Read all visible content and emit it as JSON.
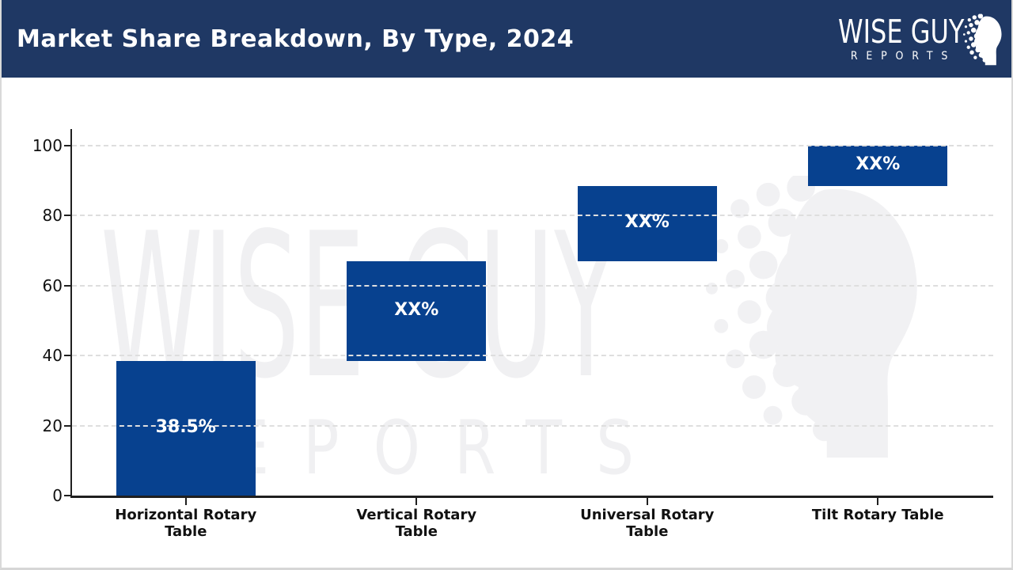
{
  "header": {
    "title": "Market Share Breakdown, By Type, 2024",
    "logo": {
      "brand_line1": "WISE GUY",
      "brand_line2": "REPORTS",
      "face_icon": "dotted-face-profile"
    }
  },
  "watermark": {
    "line1": "WISE GUY",
    "line2": "REPORTS",
    "face_icon": "dotted-face-profile"
  },
  "colors": {
    "header_bg": "#1f3864",
    "bar": "#07418f",
    "bar_label_text": "#ffffff",
    "grid": "#dedede",
    "axis": "#1f1f1f",
    "tick_text": "#111111",
    "watermark": "#f0f0f2"
  },
  "chart_data": {
    "type": "bar",
    "subtype": "waterfall-stacked",
    "title": "Market Share Breakdown, By Type, 2024",
    "categories": [
      "Horizontal Rotary Table",
      "Vertical Rotary Table",
      "Universal Rotary Table",
      "Tilt Rotary Table"
    ],
    "category_lines": [
      [
        "Horizontal Rotary",
        "Table"
      ],
      [
        "Vertical Rotary",
        "Table"
      ],
      [
        "Universal Rotary",
        "Table"
      ],
      [
        "Tilt Rotary Table"
      ]
    ],
    "segments": [
      {
        "category": "Horizontal Rotary Table",
        "start": 0,
        "end": 38.5,
        "label": "38.5%"
      },
      {
        "category": "Vertical Rotary Table",
        "start": 38.5,
        "end": 67,
        "label": "XX%"
      },
      {
        "category": "Universal Rotary Table",
        "start": 67,
        "end": 88.5,
        "label": "XX%"
      },
      {
        "category": "Tilt Rotary Table",
        "start": 88.5,
        "end": 100,
        "label": "XX%"
      }
    ],
    "ylim": [
      0,
      100
    ],
    "yticks": [
      0,
      20,
      40,
      60,
      80,
      100
    ],
    "xlabel": "",
    "ylabel": "",
    "grid": "horizontal-dashed-over-bars",
    "legend": "none"
  }
}
